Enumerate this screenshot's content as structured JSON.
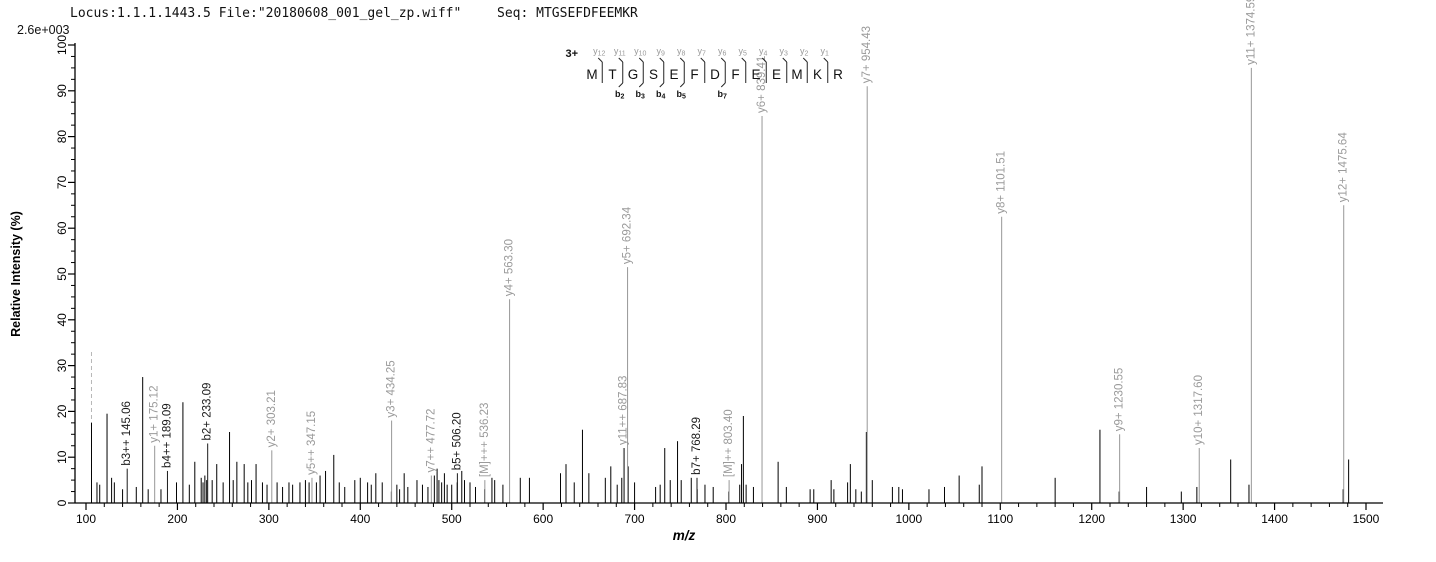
{
  "header": {
    "locus_file": "Locus:1.1.1.1443.5 File:\"20180608_001_gel_zp.wiff\"",
    "seq": "Seq: MTGSEFDFEEMKR",
    "intensity_full_scale": "2.6e+003"
  },
  "colors": {
    "peak": "#000000",
    "matched_y": "#979797",
    "matched_y_text": "#9a9a9a",
    "matched_b": "#1a1a1a",
    "axis": "#000000",
    "dashed_marker": "#b8b8b8",
    "sequence_text": "#111111",
    "background": "#ffffff"
  },
  "chart_data": {
    "type": "bar",
    "subtype": "ms2-fragmentation-spectrum",
    "title": "",
    "xlabel": "m/z",
    "ylabel": "Relative  Intensity (%)",
    "xlim": [
      88,
      1516
    ],
    "ylim": [
      0,
      100
    ],
    "x_major_ticks": [
      100,
      200,
      300,
      400,
      500,
      600,
      700,
      800,
      900,
      1000,
      1100,
      1200,
      1300,
      1400,
      1500
    ],
    "x_minor_tick_step": 20,
    "y_major_ticks": [
      0,
      10,
      20,
      30,
      40,
      50,
      60,
      70,
      80,
      90,
      100
    ],
    "y_minor_tick_step": 2.5,
    "grid": false,
    "precursor_charge": "3+",
    "sequence": "MTGSEFDFEEMKR",
    "y_ion_labels_per_gap": [
      "y12",
      "y11",
      "y10",
      "y9",
      "y8",
      "y7",
      "y6",
      "y5",
      "y4",
      "y3",
      "y2",
      "y1"
    ],
    "b_ion_labels_per_gap": [
      "",
      "b2",
      "b3",
      "b4",
      "b5",
      "",
      "b7",
      "",
      "",
      "",
      "",
      ""
    ],
    "dashed_marker": {
      "mz": 106,
      "pct": 33
    },
    "annotated_ions": [
      {
        "label": "b3++ 145.06",
        "mz": 145.06,
        "pct": 7.5,
        "series": "b"
      },
      {
        "label": "y1+ 175.12",
        "mz": 175.12,
        "pct": 12.5,
        "series": "y"
      },
      {
        "label": "b4++ 189.09",
        "mz": 189.09,
        "pct": 7,
        "series": "b"
      },
      {
        "label": "b2+ 233.09",
        "mz": 233.09,
        "pct": 13,
        "series": "b"
      },
      {
        "label": "y2+ 303.21",
        "mz": 303.21,
        "pct": 11.5,
        "series": "y"
      },
      {
        "label": "y5++ 347.15",
        "mz": 347.15,
        "pct": 5.5,
        "series": "y"
      },
      {
        "label": "y3+ 434.25",
        "mz": 434.25,
        "pct": 18,
        "series": "y"
      },
      {
        "label": "y7++ 477.72",
        "mz": 477.72,
        "pct": 6,
        "series": "y"
      },
      {
        "label": "b5+ 506.20",
        "mz": 506.2,
        "pct": 6.5,
        "series": "b"
      },
      {
        "label": "[M]+++ 536.23",
        "mz": 536.23,
        "pct": 5,
        "series": "y"
      },
      {
        "label": "y4+ 563.30",
        "mz": 563.3,
        "pct": 44.5,
        "series": "y"
      },
      {
        "label": "y11++ 687.83",
        "mz": 687.83,
        "pct": 12,
        "series": "y"
      },
      {
        "label": "y5+ 692.34",
        "mz": 692.34,
        "pct": 51.5,
        "series": "y"
      },
      {
        "label": "b7+ 768.29",
        "mz": 768.29,
        "pct": 5.5,
        "series": "b"
      },
      {
        "label": "[M]++ 803.40",
        "mz": 803.4,
        "pct": 5,
        "series": "y"
      },
      {
        "label": "y6+ 839.41",
        "mz": 839.41,
        "pct": 84.5,
        "series": "y"
      },
      {
        "label": "y7+ 954.43",
        "mz": 954.43,
        "pct": 91,
        "series": "y"
      },
      {
        "label": "y8+ 1101.51",
        "mz": 1101.51,
        "pct": 62.5,
        "series": "y"
      },
      {
        "label": "y9+ 1230.55",
        "mz": 1230.55,
        "pct": 15,
        "series": "y"
      },
      {
        "label": "y10+ 1317.60",
        "mz": 1317.6,
        "pct": 12,
        "series": "y"
      },
      {
        "label": "y11+ 1374.59",
        "mz": 1374.59,
        "pct": 95,
        "series": "y"
      },
      {
        "label": "y12+ 1475.64",
        "mz": 1475.64,
        "pct": 65,
        "series": "y"
      }
    ],
    "peaks": [
      [
        106,
        17.5
      ],
      [
        112,
        4.5
      ],
      [
        115,
        4
      ],
      [
        123,
        19.5
      ],
      [
        128,
        5.5
      ],
      [
        131,
        4.5
      ],
      [
        140,
        3
      ],
      [
        155,
        3.5
      ],
      [
        162,
        27.5
      ],
      [
        168,
        3
      ],
      [
        182,
        3
      ],
      [
        199,
        4.5
      ],
      [
        206,
        22
      ],
      [
        213,
        4
      ],
      [
        219,
        9
      ],
      [
        226,
        5.5
      ],
      [
        228,
        4.5
      ],
      [
        230,
        6
      ],
      [
        232,
        5
      ],
      [
        238,
        5
      ],
      [
        243,
        8.5
      ],
      [
        250,
        4.5
      ],
      [
        257,
        15.5
      ],
      [
        261,
        5
      ],
      [
        265,
        9
      ],
      [
        273,
        8.5
      ],
      [
        277,
        4.5
      ],
      [
        281,
        5
      ],
      [
        286,
        8.5
      ],
      [
        293,
        4.5
      ],
      [
        298,
        4
      ],
      [
        309,
        4.5
      ],
      [
        315,
        3.5
      ],
      [
        322,
        4.5
      ],
      [
        326,
        4
      ],
      [
        334,
        4.5
      ],
      [
        340,
        5
      ],
      [
        344,
        4.5
      ],
      [
        352,
        4.5
      ],
      [
        356,
        6
      ],
      [
        362,
        7
      ],
      [
        371,
        10.5
      ],
      [
        377,
        4.5
      ],
      [
        383,
        3.5
      ],
      [
        394,
        5
      ],
      [
        400,
        5.5
      ],
      [
        408,
        4.5
      ],
      [
        412,
        4
      ],
      [
        417,
        6.5
      ],
      [
        424,
        4.5
      ],
      [
        434,
        2.5
      ],
      [
        440,
        4
      ],
      [
        443,
        3
      ],
      [
        448,
        6.5
      ],
      [
        452,
        3.5
      ],
      [
        462,
        5
      ],
      [
        468,
        4
      ],
      [
        474,
        3.5
      ],
      [
        481,
        6
      ],
      [
        484,
        7.5
      ],
      [
        486,
        5
      ],
      [
        489,
        4.5
      ],
      [
        492,
        6.5
      ],
      [
        495,
        4
      ],
      [
        500,
        4
      ],
      [
        506,
        4.5
      ],
      [
        511,
        7
      ],
      [
        514,
        5
      ],
      [
        520,
        4.5
      ],
      [
        526,
        3.5
      ],
      [
        536,
        3
      ],
      [
        544,
        5.5
      ],
      [
        547,
        5
      ],
      [
        556,
        4
      ],
      [
        575,
        5.5
      ],
      [
        585,
        5.5
      ],
      [
        619,
        6.5
      ],
      [
        625,
        8.5
      ],
      [
        634,
        4.5
      ],
      [
        643,
        16
      ],
      [
        650,
        6.5
      ],
      [
        668,
        5.5
      ],
      [
        674,
        8
      ],
      [
        681,
        4
      ],
      [
        686,
        5.5
      ],
      [
        688.5,
        12
      ],
      [
        693,
        8
      ],
      [
        700,
        4.5
      ],
      [
        723,
        3.5
      ],
      [
        728,
        4
      ],
      [
        733,
        12
      ],
      [
        739,
        5
      ],
      [
        747,
        13.5
      ],
      [
        751,
        5
      ],
      [
        762,
        5.5
      ],
      [
        768.5,
        3
      ],
      [
        777,
        4
      ],
      [
        786,
        3.5
      ],
      [
        803,
        2.5
      ],
      [
        815,
        4
      ],
      [
        817,
        8.5
      ],
      [
        819,
        19
      ],
      [
        822,
        4
      ],
      [
        830,
        3.5
      ],
      [
        857,
        9
      ],
      [
        866,
        3.5
      ],
      [
        892,
        3
      ],
      [
        896,
        3
      ],
      [
        915,
        5
      ],
      [
        918,
        3
      ],
      [
        933,
        4.5
      ],
      [
        936,
        8.5
      ],
      [
        942,
        3
      ],
      [
        948,
        2.5
      ],
      [
        953.5,
        15.5
      ],
      [
        960,
        5
      ],
      [
        982,
        3.5
      ],
      [
        989,
        3.5
      ],
      [
        993,
        3
      ],
      [
        1022,
        3
      ],
      [
        1039,
        3.5
      ],
      [
        1055,
        6
      ],
      [
        1077,
        4
      ],
      [
        1080,
        8
      ],
      [
        1160,
        5.5
      ],
      [
        1209,
        16
      ],
      [
        1230,
        2.5
      ],
      [
        1260,
        3.5
      ],
      [
        1298,
        2.5
      ],
      [
        1315,
        3.5
      ],
      [
        1352,
        9.5
      ],
      [
        1372,
        4
      ],
      [
        1475,
        3
      ],
      [
        1481,
        9.5
      ]
    ]
  }
}
